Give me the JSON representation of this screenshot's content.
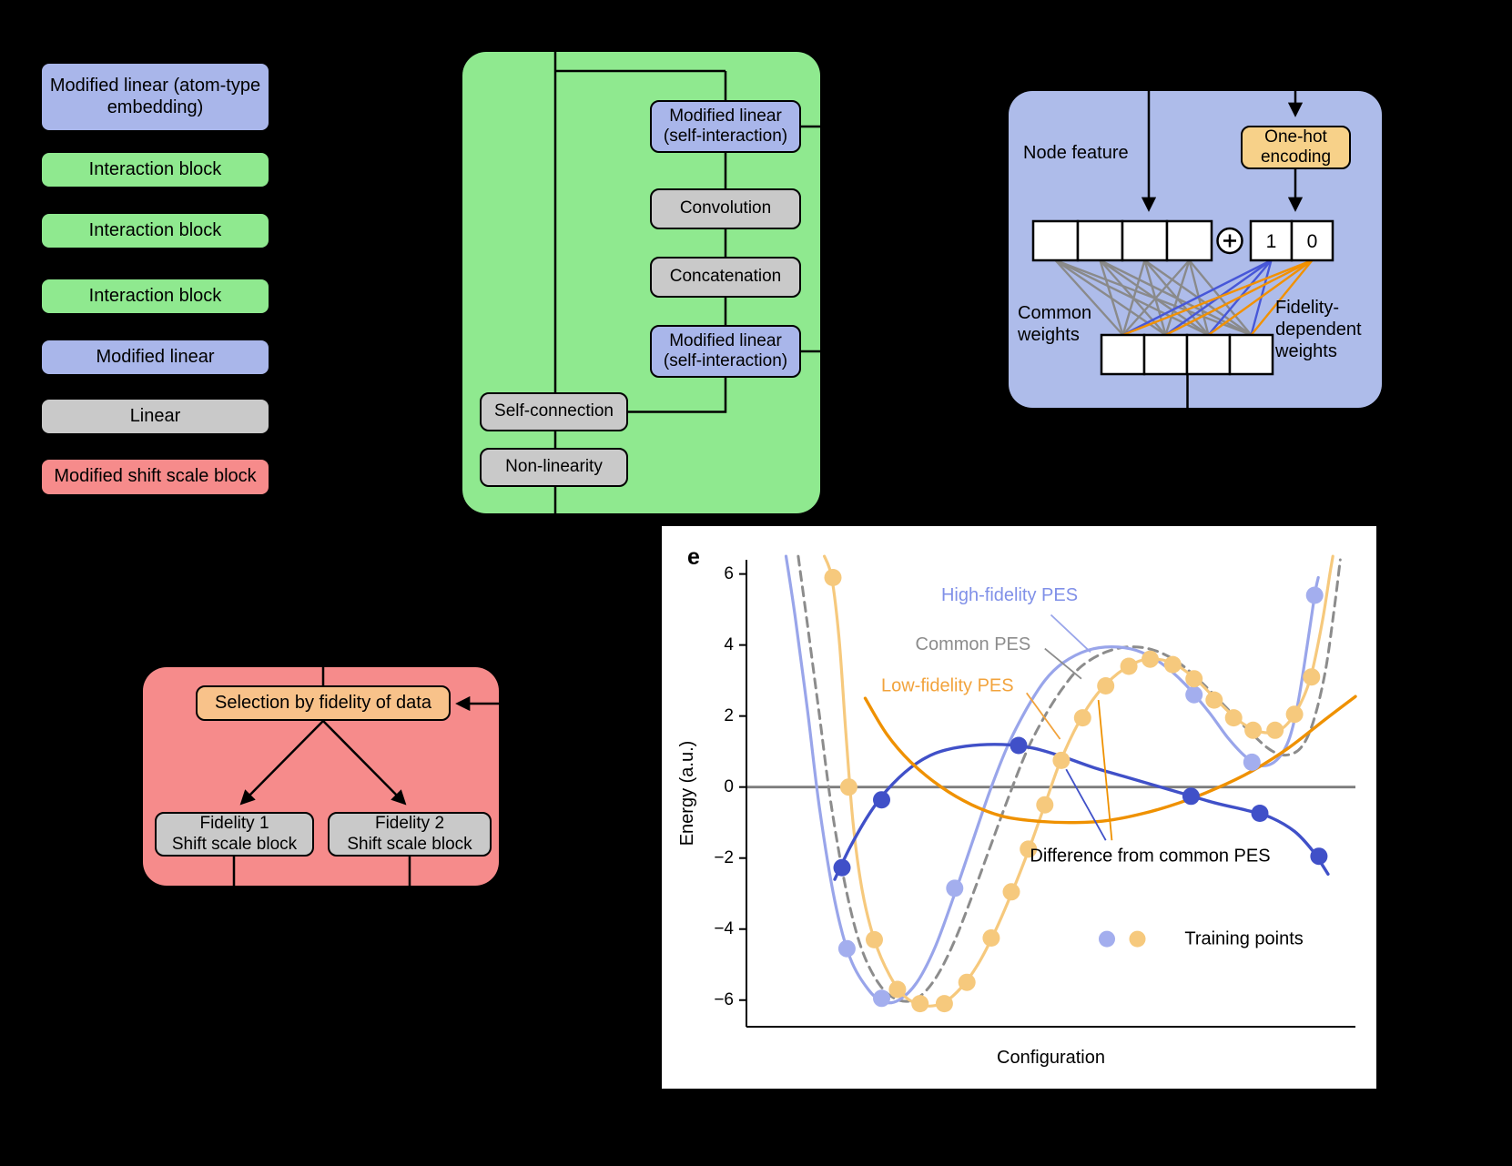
{
  "theme": {
    "background": "#000000",
    "block_blue": "#a9b6ea",
    "block_green": "#8fe98f",
    "block_gray": "#c9c9c9",
    "panel_red": "#f68b8b",
    "panel_blue": "#aebcea",
    "one_hot_orange": "#f7d189",
    "selection_peach": "#f8c28a",
    "weight_gray": "#8a8a8a",
    "weight_blue": "#4757d8",
    "weight_orange": "#f29100"
  },
  "panel_a": {
    "blocks": [
      {
        "label": "Modified linear (atom-type embedding)",
        "style": "blue"
      },
      {
        "label": "Interaction block",
        "style": "green"
      },
      {
        "label": "Interaction block",
        "style": "green"
      },
      {
        "label": "Interaction block",
        "style": "green"
      },
      {
        "label": "Modified linear",
        "style": "blue"
      },
      {
        "label": "Linear",
        "style": "gray"
      },
      {
        "label": "Modified shift scale block",
        "style": "red"
      }
    ]
  },
  "panel_b": {
    "boxes": [
      {
        "label": "Modified linear (self-interaction)",
        "style": "blue"
      },
      {
        "label": "Convolution",
        "style": "gray"
      },
      {
        "label": "Concatenation",
        "style": "gray"
      },
      {
        "label": "Modified linear (self-interaction)",
        "style": "blue"
      },
      {
        "label": "Self-connection",
        "style": "gray"
      },
      {
        "label": "Non-linearity",
        "style": "gray"
      }
    ]
  },
  "panel_c": {
    "node_feature_label": "Node feature",
    "one_hot_label": "One-hot encoding",
    "bit_one": "1",
    "bit_zero": "0",
    "common_weights_label": "Common weights",
    "fidelity_weights_label": "Fidelity-dependent weights"
  },
  "panel_d": {
    "selection_label": "Selection by fidelity of data",
    "fidelity1_line1": "Fidelity 1",
    "fidelity1_line2": "Shift scale block",
    "fidelity2_line1": "Fidelity 2",
    "fidelity2_line2": "Shift scale block"
  },
  "panel_e": {
    "label": "e"
  },
  "chart_data": {
    "type": "line",
    "title": "",
    "xlabel": "Configuration",
    "ylabel": "Energy (a.u.)",
    "xlim": [
      0,
      1.0
    ],
    "ylim": [
      -6.75,
      6.4
    ],
    "yticks": [
      -6,
      -4,
      -2,
      0,
      2,
      4,
      6
    ],
    "zero_line": true,
    "grid": false,
    "series": [
      {
        "name": "Common PES",
        "color": "#8c8c8c",
        "width": 3,
        "dash": "10 7",
        "points": [
          [
            0.085,
            6.5
          ],
          [
            0.1,
            4.6
          ],
          [
            0.12,
            2.0
          ],
          [
            0.14,
            -0.6
          ],
          [
            0.165,
            -3.0
          ],
          [
            0.19,
            -4.6
          ],
          [
            0.22,
            -5.6
          ],
          [
            0.25,
            -6.0
          ],
          [
            0.28,
            -5.95
          ],
          [
            0.31,
            -5.4
          ],
          [
            0.34,
            -4.4
          ],
          [
            0.37,
            -3.1
          ],
          [
            0.4,
            -1.7
          ],
          [
            0.43,
            -0.3
          ],
          [
            0.46,
            1.0
          ],
          [
            0.49,
            2.0
          ],
          [
            0.52,
            2.8
          ],
          [
            0.55,
            3.4
          ],
          [
            0.59,
            3.8
          ],
          [
            0.63,
            3.95
          ],
          [
            0.67,
            3.85
          ],
          [
            0.71,
            3.5
          ],
          [
            0.75,
            2.9
          ],
          [
            0.79,
            2.2
          ],
          [
            0.83,
            1.5
          ],
          [
            0.86,
            1.05
          ],
          [
            0.885,
            0.9
          ],
          [
            0.91,
            1.1
          ],
          [
            0.93,
            1.8
          ],
          [
            0.95,
            3.2
          ],
          [
            0.965,
            5.0
          ],
          [
            0.975,
            6.4
          ]
        ]
      },
      {
        "name": "High-fidelity PES",
        "color": "#99a5ea",
        "width": 3.2,
        "dash": null,
        "points": [
          [
            0.065,
            6.5
          ],
          [
            0.08,
            4.8
          ],
          [
            0.1,
            2.2
          ],
          [
            0.12,
            -0.6
          ],
          [
            0.145,
            -3.2
          ],
          [
            0.17,
            -4.8
          ],
          [
            0.2,
            -5.7
          ],
          [
            0.225,
            -6.05
          ],
          [
            0.25,
            -6.0
          ],
          [
            0.28,
            -5.5
          ],
          [
            0.31,
            -4.5
          ],
          [
            0.34,
            -3.1
          ],
          [
            0.37,
            -1.6
          ],
          [
            0.4,
            -0.1
          ],
          [
            0.43,
            1.2
          ],
          [
            0.46,
            2.2
          ],
          [
            0.49,
            3.0
          ],
          [
            0.52,
            3.5
          ],
          [
            0.56,
            3.85
          ],
          [
            0.6,
            3.95
          ],
          [
            0.64,
            3.85
          ],
          [
            0.68,
            3.5
          ],
          [
            0.72,
            2.9
          ],
          [
            0.76,
            2.1
          ],
          [
            0.79,
            1.4
          ],
          [
            0.82,
            0.85
          ],
          [
            0.845,
            0.6
          ],
          [
            0.87,
            0.75
          ],
          [
            0.89,
            1.3
          ],
          [
            0.905,
            2.3
          ],
          [
            0.92,
            3.9
          ],
          [
            0.933,
            5.4
          ],
          [
            0.939,
            5.9
          ]
        ]
      },
      {
        "name": "Low-fidelity PES",
        "color": "#f6c97d",
        "width": 3.2,
        "dash": null,
        "points": [
          [
            0.128,
            6.5
          ],
          [
            0.14,
            5.9
          ],
          [
            0.152,
            4.2
          ],
          [
            0.163,
            1.6
          ],
          [
            0.175,
            -1.0
          ],
          [
            0.19,
            -2.9
          ],
          [
            0.21,
            -4.3
          ],
          [
            0.235,
            -5.3
          ],
          [
            0.26,
            -5.9
          ],
          [
            0.29,
            -6.15
          ],
          [
            0.32,
            -6.1
          ],
          [
            0.35,
            -5.7
          ],
          [
            0.38,
            -5.0
          ],
          [
            0.41,
            -4.0
          ],
          [
            0.44,
            -2.8
          ],
          [
            0.465,
            -1.7
          ],
          [
            0.49,
            -0.5
          ],
          [
            0.515,
            0.7
          ],
          [
            0.545,
            1.8
          ],
          [
            0.575,
            2.6
          ],
          [
            0.61,
            3.2
          ],
          [
            0.645,
            3.55
          ],
          [
            0.675,
            3.6
          ],
          [
            0.705,
            3.45
          ],
          [
            0.74,
            3.0
          ],
          [
            0.775,
            2.4
          ],
          [
            0.81,
            1.85
          ],
          [
            0.845,
            1.55
          ],
          [
            0.875,
            1.6
          ],
          [
            0.9,
            2.05
          ],
          [
            0.925,
            3.0
          ],
          [
            0.945,
            4.6
          ],
          [
            0.958,
            6.0
          ],
          [
            0.963,
            6.5
          ]
        ]
      },
      {
        "name": "High-fidelity difference from common PES",
        "color": "#4050c8",
        "width": 3.4,
        "dash": null,
        "points": [
          [
            0.145,
            -2.6
          ],
          [
            0.17,
            -1.7
          ],
          [
            0.2,
            -0.8
          ],
          [
            0.23,
            -0.1
          ],
          [
            0.27,
            0.55
          ],
          [
            0.31,
            0.95
          ],
          [
            0.36,
            1.15
          ],
          [
            0.42,
            1.2
          ],
          [
            0.47,
            1.1
          ],
          [
            0.52,
            0.85
          ],
          [
            0.57,
            0.55
          ],
          [
            0.62,
            0.3
          ],
          [
            0.67,
            0.05
          ],
          [
            0.72,
            -0.2
          ],
          [
            0.77,
            -0.45
          ],
          [
            0.82,
            -0.65
          ],
          [
            0.86,
            -0.85
          ],
          [
            0.9,
            -1.25
          ],
          [
            0.93,
            -1.8
          ],
          [
            0.955,
            -2.45
          ]
        ]
      },
      {
        "name": "Low-fidelity difference from common PES",
        "color": "#ef9100",
        "width": 3.4,
        "dash": null,
        "points": [
          [
            0.195,
            2.5
          ],
          [
            0.23,
            1.5
          ],
          [
            0.27,
            0.7
          ],
          [
            0.32,
            0.0
          ],
          [
            0.37,
            -0.5
          ],
          [
            0.42,
            -0.82
          ],
          [
            0.47,
            -0.95
          ],
          [
            0.53,
            -1.0
          ],
          [
            0.59,
            -0.95
          ],
          [
            0.65,
            -0.75
          ],
          [
            0.71,
            -0.45
          ],
          [
            0.77,
            -0.05
          ],
          [
            0.83,
            0.45
          ],
          [
            0.89,
            1.1
          ],
          [
            0.95,
            1.9
          ],
          [
            1.0,
            2.55
          ]
        ]
      }
    ],
    "scatter": [
      {
        "name": "High-fidelity training points",
        "color": "#a3aeee",
        "r": 9.5,
        "points": [
          [
            0.165,
            -4.55
          ],
          [
            0.222,
            -5.95
          ],
          [
            0.342,
            -2.85
          ],
          [
            0.735,
            2.6
          ],
          [
            0.83,
            0.7
          ],
          [
            0.933,
            5.4
          ]
        ]
      },
      {
        "name": "Low-fidelity training points",
        "color": "#f6c97d",
        "r": 9.5,
        "points": [
          [
            0.142,
            5.9
          ],
          [
            0.168,
            0.0
          ],
          [
            0.21,
            -4.3
          ],
          [
            0.248,
            -5.7
          ],
          [
            0.285,
            -6.1
          ],
          [
            0.325,
            -6.1
          ],
          [
            0.362,
            -5.5
          ],
          [
            0.402,
            -4.25
          ],
          [
            0.435,
            -2.95
          ],
          [
            0.463,
            -1.75
          ],
          [
            0.49,
            -0.5
          ],
          [
            0.517,
            0.75
          ],
          [
            0.552,
            1.95
          ],
          [
            0.59,
            2.85
          ],
          [
            0.628,
            3.4
          ],
          [
            0.663,
            3.6
          ],
          [
            0.7,
            3.45
          ],
          [
            0.735,
            3.05
          ],
          [
            0.768,
            2.45
          ],
          [
            0.8,
            1.95
          ],
          [
            0.832,
            1.6
          ],
          [
            0.868,
            1.6
          ],
          [
            0.9,
            2.05
          ],
          [
            0.928,
            3.1
          ]
        ]
      },
      {
        "name": "High-fidelity difference points",
        "color": "#4050c8",
        "r": 9.5,
        "points": [
          [
            0.157,
            -2.27
          ],
          [
            0.222,
            -0.36
          ],
          [
            0.447,
            1.17
          ],
          [
            0.73,
            -0.26
          ],
          [
            0.843,
            -0.74
          ],
          [
            0.94,
            -1.95
          ]
        ]
      }
    ],
    "leaders": [
      {
        "color": "#99a5ea",
        "from": [
          0.5,
          4.85
        ],
        "to": [
          0.565,
          3.8
        ]
      },
      {
        "color": "#8c8c8c",
        "from": [
          0.49,
          3.9
        ],
        "to": [
          0.55,
          3.05
        ]
      },
      {
        "color": "#f2a33c",
        "from": [
          0.46,
          2.65
        ],
        "to": [
          0.515,
          1.35
        ]
      },
      {
        "color": "#4050c8",
        "from": [
          0.525,
          0.5
        ],
        "to": [
          0.59,
          -1.5
        ]
      },
      {
        "color": "#ef9100",
        "from": [
          0.578,
          2.45
        ],
        "to": [
          0.6,
          -1.5
        ]
      }
    ],
    "annotations": [
      {
        "text": "High-fidelity PES",
        "x": 0.432,
        "y": 5.4,
        "color": "#8090e8",
        "size": 20
      },
      {
        "text": "Common PES",
        "x": 0.372,
        "y": 4.02,
        "color": "#8c8c8c",
        "size": 20
      },
      {
        "text": "Low-fidelity PES",
        "x": 0.33,
        "y": 2.85,
        "color": "#f2a33c",
        "size": 20
      },
      {
        "text": "Difference from common PES",
        "x": 0.663,
        "y": -1.95,
        "color": "#000000",
        "size": 20
      },
      {
        "text": "Training points",
        "x": 0.817,
        "y": -4.28,
        "color": "#000000",
        "size": 20
      }
    ],
    "legend_dots": [
      {
        "color": "#a3aeee",
        "x": 0.592,
        "y": -4.28,
        "r": 9
      },
      {
        "color": "#f6c97d",
        "x": 0.642,
        "y": -4.28,
        "r": 9
      }
    ]
  }
}
